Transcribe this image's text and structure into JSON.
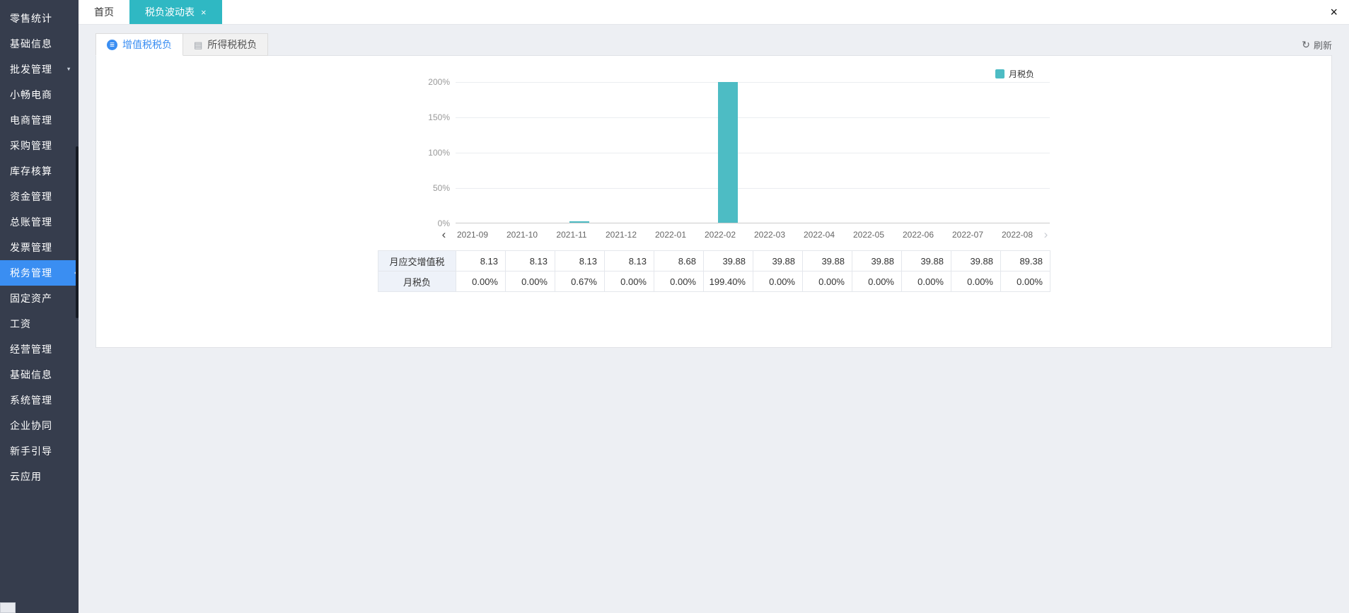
{
  "colors": {
    "sidebar_bg": "#363d4d",
    "sidebar_active": "#3a8ef2",
    "tab_active_bg": "#2fb8c3",
    "bar": "#4dbcc4",
    "page_bg": "#edeff3",
    "panel_bg": "#ffffff"
  },
  "icons": {
    "close": "×",
    "caret_down": "▼",
    "refresh": "↻",
    "vat_tab": "≣",
    "income_tab": "▤",
    "pager_prev": "‹",
    "pager_next": "›"
  },
  "sidebar": {
    "items": [
      {
        "label": "零售统计"
      },
      {
        "label": "基础信息"
      },
      {
        "label": "批发管理",
        "caret": true
      },
      {
        "label": "小畅电商"
      },
      {
        "label": "电商管理"
      },
      {
        "label": "采购管理"
      },
      {
        "label": "库存核算"
      },
      {
        "label": "资金管理"
      },
      {
        "label": "总账管理"
      },
      {
        "label": "发票管理"
      },
      {
        "label": "税务管理",
        "active": true
      },
      {
        "label": "固定资产"
      },
      {
        "label": "工资"
      },
      {
        "label": "经营管理"
      },
      {
        "label": "基础信息"
      },
      {
        "label": "系统管理"
      },
      {
        "label": "企业协同"
      },
      {
        "label": "新手引导"
      },
      {
        "label": "云应用"
      }
    ]
  },
  "topbar": {
    "tabs": [
      {
        "label": "首页",
        "active": false,
        "closable": false
      },
      {
        "label": "税负波动表",
        "active": true,
        "closable": true
      }
    ]
  },
  "panel": {
    "tabs": [
      {
        "label": "增值税税负",
        "active": true
      },
      {
        "label": "所得税税负",
        "active": false
      }
    ],
    "refresh_label": "刷新"
  },
  "chart_data": {
    "type": "bar",
    "title": "",
    "legend": [
      "月税负"
    ],
    "legend_position": "top-right",
    "color": "#4dbcc4",
    "categories": [
      "2021-09",
      "2021-10",
      "2021-11",
      "2021-12",
      "2022-01",
      "2022-02",
      "2022-03",
      "2022-04",
      "2022-05",
      "2022-06",
      "2022-07",
      "2022-08"
    ],
    "series": [
      {
        "name": "月税负",
        "unit": "%",
        "values": [
          0,
          0,
          0.67,
          0,
          0,
          199.4,
          0,
          0,
          0,
          0,
          0,
          0
        ]
      }
    ],
    "ylim": [
      0,
      200
    ],
    "yticks": [
      "0%",
      "50%",
      "100%",
      "150%",
      "200%"
    ],
    "grid": true
  },
  "table": {
    "rows": [
      {
        "label": "月应交增值税",
        "values": [
          "8.13",
          "8.13",
          "8.13",
          "8.13",
          "8.68",
          "39.88",
          "39.88",
          "39.88",
          "39.88",
          "39.88",
          "39.88",
          "89.38"
        ]
      },
      {
        "label": "月税负",
        "values": [
          "0.00%",
          "0.00%",
          "0.67%",
          "0.00%",
          "0.00%",
          "199.40%",
          "0.00%",
          "0.00%",
          "0.00%",
          "0.00%",
          "0.00%",
          "0.00%"
        ]
      }
    ]
  }
}
